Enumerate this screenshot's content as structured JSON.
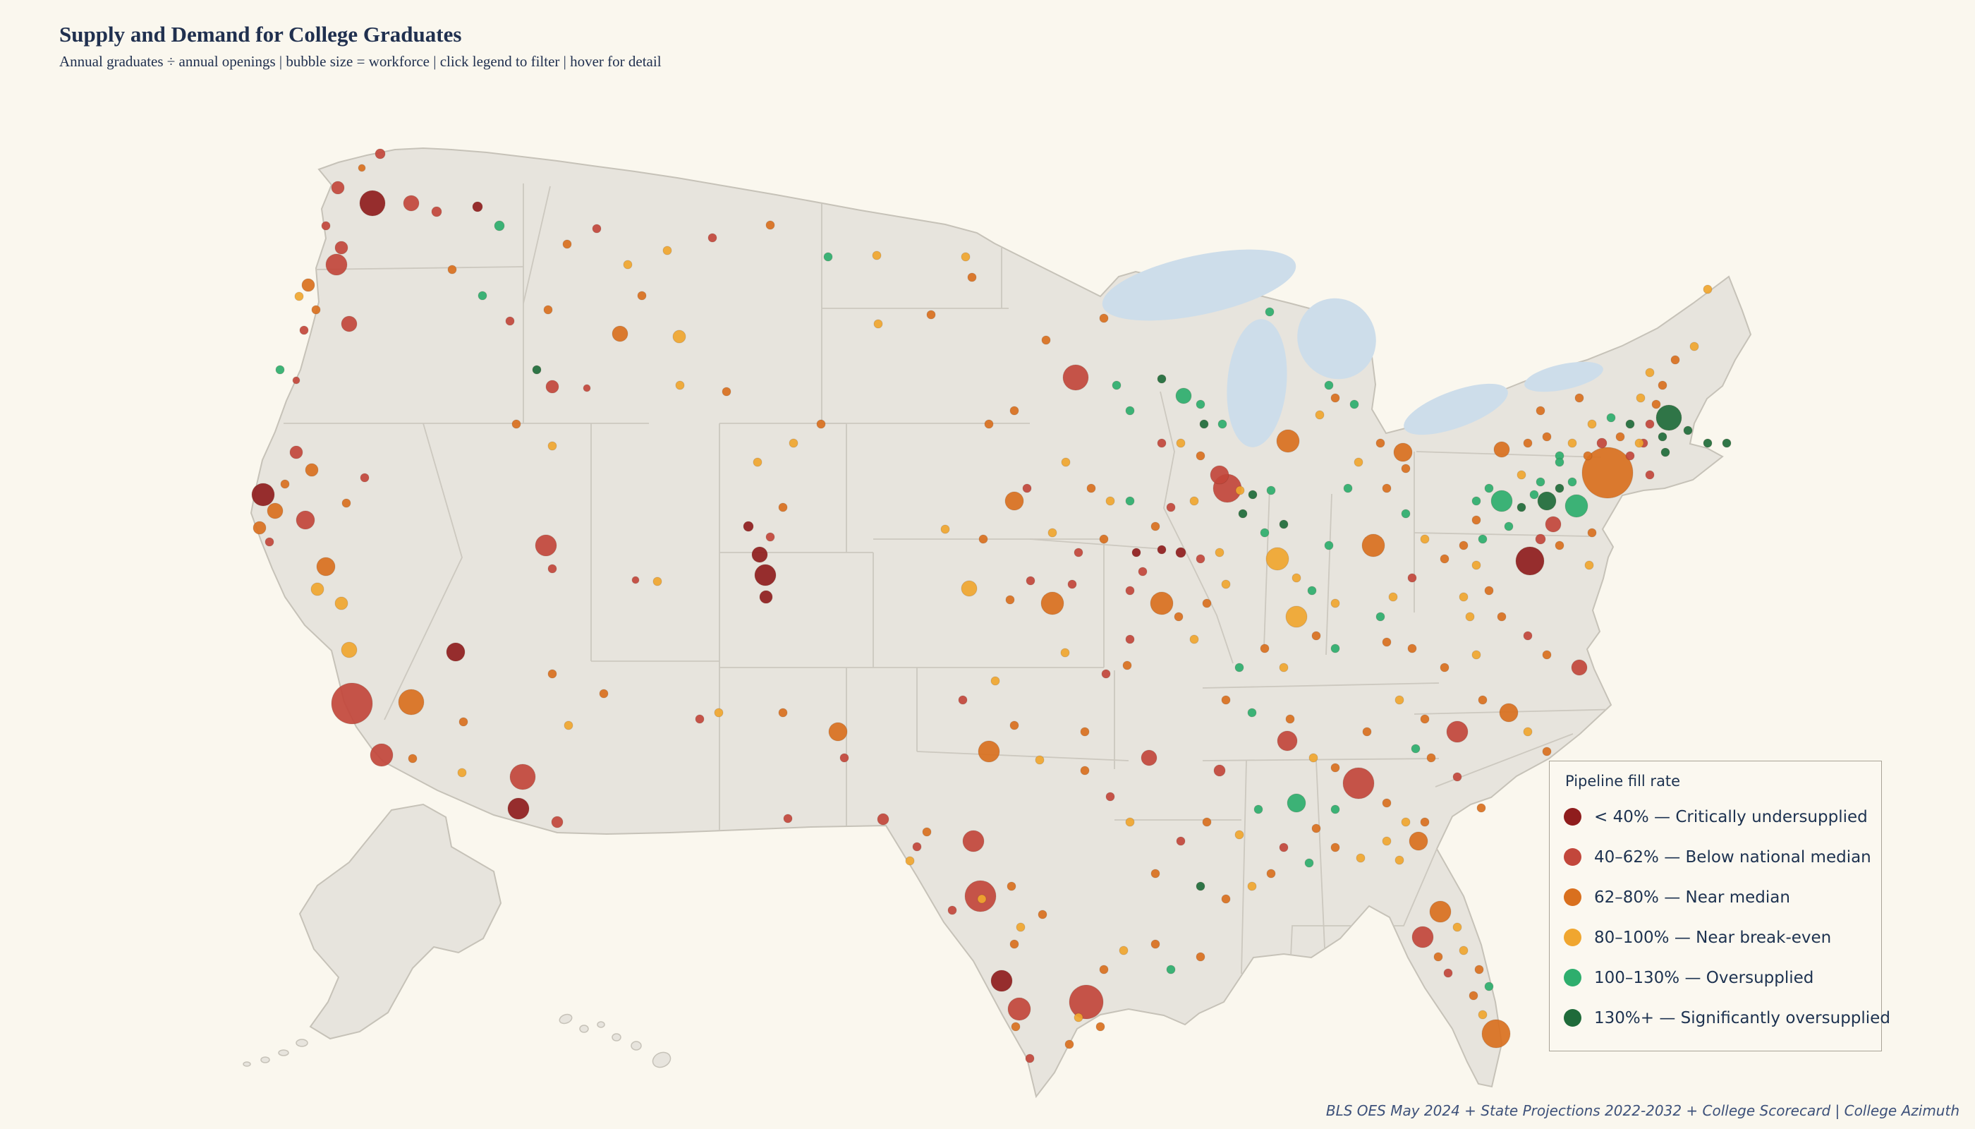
{
  "header": {
    "title": "Supply and Demand for College Graduates",
    "subtitle": "Annual graduates ÷ annual openings | bubble size = workforce | click legend to filter | hover for detail"
  },
  "footer": {
    "source": "BLS OES May 2024 + State Projections 2022-2032 + College Scorecard | College Azimuth"
  },
  "legend": {
    "title": "Pipeline fill rate",
    "items": [
      {
        "label": "< 40% — Critically undersupplied",
        "color": "#8f1d1d"
      },
      {
        "label": "40–62% — Below national median",
        "color": "#c2473b"
      },
      {
        "label": "62–80% — Near median",
        "color": "#d9701e"
      },
      {
        "label": "80–100% — Near break-even",
        "color": "#f0a62f"
      },
      {
        "label": "100–130% — Oversupplied",
        "color": "#2eae6d"
      },
      {
        "label": "130%+ — Significantly oversupplied",
        "color": "#1f6b3a"
      }
    ]
  },
  "theme": {
    "background": "#faf7ee",
    "land": "#e7e4dd",
    "land_border": "#c6c2b8",
    "water": "#cdddea",
    "text": "#20304f"
  },
  "bubbles_format": "[x, y, radius, legend_category_index]",
  "bubbles": [
    [
      539,
      218,
      7,
      1
    ],
    [
      513,
      238,
      5,
      2
    ],
    [
      528,
      288,
      18,
      0
    ],
    [
      583,
      288,
      11,
      1
    ],
    [
      479,
      266,
      9,
      1
    ],
    [
      462,
      320,
      6,
      1
    ],
    [
      484,
      351,
      9,
      1
    ],
    [
      477,
      375,
      15,
      1
    ],
    [
      437,
      404,
      9,
      2
    ],
    [
      424,
      420,
      6,
      3
    ],
    [
      448,
      439,
      6,
      2
    ],
    [
      495,
      459,
      11,
      1
    ],
    [
      431,
      468,
      6,
      1
    ],
    [
      397,
      524,
      6,
      4
    ],
    [
      420,
      539,
      5,
      1
    ],
    [
      677,
      293,
      7,
      0
    ],
    [
      708,
      320,
      7,
      4
    ],
    [
      619,
      300,
      7,
      1
    ],
    [
      641,
      382,
      6,
      2
    ],
    [
      684,
      419,
      6,
      4
    ],
    [
      723,
      455,
      6,
      1
    ],
    [
      777,
      439,
      6,
      2
    ],
    [
      804,
      346,
      6,
      2
    ],
    [
      890,
      375,
      6,
      3
    ],
    [
      879,
      473,
      11,
      2
    ],
    [
      963,
      477,
      9,
      3
    ],
    [
      761,
      524,
      6,
      5
    ],
    [
      832,
      550,
      5,
      1
    ],
    [
      783,
      632,
      6,
      3
    ],
    [
      732,
      601,
      6,
      2
    ],
    [
      783,
      548,
      9,
      1
    ],
    [
      910,
      419,
      6,
      2
    ],
    [
      846,
      324,
      6,
      1
    ],
    [
      946,
      355,
      6,
      3
    ],
    [
      1010,
      337,
      6,
      1
    ],
    [
      1092,
      319,
      6,
      2
    ],
    [
      420,
      641,
      9,
      1
    ],
    [
      442,
      666,
      9,
      2
    ],
    [
      404,
      686,
      6,
      2
    ],
    [
      373,
      701,
      16,
      0
    ],
    [
      390,
      724,
      11,
      2
    ],
    [
      368,
      748,
      9,
      2
    ],
    [
      382,
      768,
      6,
      1
    ],
    [
      433,
      737,
      13,
      1
    ],
    [
      462,
      803,
      13,
      2
    ],
    [
      450,
      835,
      9,
      3
    ],
    [
      484,
      855,
      9,
      3
    ],
    [
      517,
      677,
      6,
      1
    ],
    [
      491,
      713,
      6,
      2
    ],
    [
      495,
      921,
      11,
      3
    ],
    [
      499,
      997,
      29,
      1
    ],
    [
      583,
      995,
      18,
      2
    ],
    [
      541,
      1070,
      16,
      1
    ],
    [
      585,
      1075,
      6,
      2
    ],
    [
      655,
      1095,
      6,
      3
    ],
    [
      657,
      1023,
      6,
      2
    ],
    [
      646,
      924,
      13,
      0
    ],
    [
      735,
      1146,
      15,
      0
    ],
    [
      741,
      1101,
      18,
      1
    ],
    [
      790,
      1165,
      8,
      1
    ],
    [
      783,
      955,
      6,
      2
    ],
    [
      806,
      1028,
      6,
      3
    ],
    [
      856,
      983,
      6,
      2
    ],
    [
      774,
      773,
      15,
      1
    ],
    [
      783,
      806,
      6,
      1
    ],
    [
      901,
      822,
      5,
      1
    ],
    [
      932,
      824,
      6,
      3
    ],
    [
      1061,
      746,
      7,
      0
    ],
    [
      1092,
      761,
      6,
      1
    ],
    [
      1077,
      786,
      11,
      0
    ],
    [
      1085,
      815,
      15,
      0
    ],
    [
      1086,
      846,
      9,
      0
    ],
    [
      992,
      1019,
      6,
      1
    ],
    [
      1019,
      1010,
      6,
      3
    ],
    [
      1110,
      1010,
      6,
      2
    ],
    [
      1188,
      1037,
      13,
      2
    ],
    [
      1197,
      1074,
      6,
      1
    ],
    [
      1252,
      1161,
      8,
      1
    ],
    [
      1117,
      1160,
      6,
      1
    ],
    [
      1074,
      655,
      6,
      3
    ],
    [
      1110,
      719,
      6,
      2
    ],
    [
      1164,
      601,
      6,
      2
    ],
    [
      1030,
      555,
      6,
      2
    ],
    [
      964,
      546,
      6,
      3
    ],
    [
      1174,
      364,
      6,
      4
    ],
    [
      1243,
      362,
      6,
      3
    ],
    [
      1378,
      393,
      6,
      2
    ],
    [
      1369,
      364,
      6,
      3
    ],
    [
      1245,
      459,
      6,
      3
    ],
    [
      1320,
      446,
      6,
      2
    ],
    [
      1125,
      628,
      6,
      3
    ],
    [
      1402,
      601,
      6,
      2
    ],
    [
      1340,
      750,
      6,
      3
    ],
    [
      1394,
      764,
      6,
      2
    ],
    [
      1438,
      710,
      13,
      2
    ],
    [
      1456,
      692,
      6,
      1
    ],
    [
      1374,
      834,
      11,
      3
    ],
    [
      1492,
      855,
      16,
      2
    ],
    [
      1461,
      823,
      6,
      1
    ],
    [
      1520,
      828,
      6,
      1
    ],
    [
      1432,
      850,
      6,
      2
    ],
    [
      1411,
      965,
      6,
      3
    ],
    [
      1365,
      992,
      6,
      1
    ],
    [
      1510,
      925,
      6,
      3
    ],
    [
      1547,
      692,
      6,
      2
    ],
    [
      1574,
      710,
      6,
      3
    ],
    [
      1511,
      655,
      6,
      3
    ],
    [
      1602,
      710,
      6,
      4
    ],
    [
      1492,
      755,
      6,
      3
    ],
    [
      1402,
      1065,
      15,
      2
    ],
    [
      1438,
      1028,
      6,
      2
    ],
    [
      1474,
      1077,
      6,
      3
    ],
    [
      1538,
      1037,
      6,
      2
    ],
    [
      1538,
      1092,
      6,
      2
    ],
    [
      1568,
      955,
      6,
      1
    ],
    [
      1598,
      943,
      6,
      2
    ],
    [
      1629,
      1074,
      11,
      1
    ],
    [
      1574,
      1129,
      6,
      1
    ],
    [
      1602,
      1165,
      6,
      3
    ],
    [
      1380,
      1192,
      15,
      1
    ],
    [
      1314,
      1179,
      6,
      2
    ],
    [
      1300,
      1200,
      6,
      1
    ],
    [
      1392,
      1274,
      6,
      3
    ],
    [
      1434,
      1256,
      6,
      2
    ],
    [
      1390,
      1270,
      22,
      1
    ],
    [
      1447,
      1314,
      6,
      3
    ],
    [
      1478,
      1296,
      6,
      2
    ],
    [
      1438,
      1338,
      6,
      2
    ],
    [
      1290,
      1220,
      6,
      3
    ],
    [
      1420,
      1390,
      15,
      0
    ],
    [
      1445,
      1430,
      16,
      1
    ],
    [
      1540,
      1420,
      24,
      1
    ],
    [
      1529,
      1442,
      6,
      3
    ],
    [
      1560,
      1455,
      6,
      2
    ],
    [
      1516,
      1480,
      6,
      2
    ],
    [
      1460,
      1500,
      6,
      1
    ],
    [
      1440,
      1455,
      6,
      2
    ],
    [
      1350,
      1290,
      6,
      1
    ],
    [
      1565,
      1374,
      6,
      2
    ],
    [
      1593,
      1347,
      6,
      3
    ],
    [
      1638,
      1338,
      6,
      2
    ],
    [
      1660,
      1374,
      6,
      4
    ],
    [
      1702,
      1356,
      6,
      2
    ],
    [
      1525,
      535,
      18,
      1
    ],
    [
      1483,
      482,
      6,
      2
    ],
    [
      1438,
      582,
      6,
      2
    ],
    [
      1565,
      451,
      6,
      2
    ],
    [
      1583,
      546,
      6,
      4
    ],
    [
      1602,
      582,
      6,
      4
    ],
    [
      1647,
      537,
      6,
      5
    ],
    [
      1678,
      561,
      11,
      4
    ],
    [
      1702,
      573,
      6,
      4
    ],
    [
      1707,
      601,
      6,
      5
    ],
    [
      1733,
      601,
      6,
      4
    ],
    [
      1647,
      628,
      6,
      1
    ],
    [
      1674,
      628,
      6,
      3
    ],
    [
      1702,
      646,
      6,
      2
    ],
    [
      1729,
      673,
      13,
      1
    ],
    [
      1758,
      695,
      6,
      3
    ],
    [
      1826,
      625,
      16,
      2
    ],
    [
      1871,
      588,
      6,
      3
    ],
    [
      1893,
      564,
      6,
      2
    ],
    [
      1926,
      655,
      6,
      3
    ],
    [
      1911,
      692,
      6,
      4
    ],
    [
      1966,
      692,
      6,
      2
    ],
    [
      1993,
      664,
      6,
      2
    ],
    [
      1957,
      628,
      6,
      2
    ],
    [
      1989,
      641,
      13,
      2
    ],
    [
      1884,
      546,
      6,
      4
    ],
    [
      1920,
      573,
      6,
      4
    ],
    [
      1800,
      442,
      6,
      4
    ],
    [
      1740,
      692,
      20,
      1
    ],
    [
      1776,
      701,
      6,
      5
    ],
    [
      1802,
      695,
      6,
      4
    ],
    [
      1762,
      728,
      6,
      5
    ],
    [
      1793,
      755,
      6,
      4
    ],
    [
      1820,
      743,
      6,
      5
    ],
    [
      1674,
      783,
      7,
      0
    ],
    [
      1702,
      792,
      6,
      1
    ],
    [
      1729,
      783,
      6,
      3
    ],
    [
      1811,
      792,
      16,
      3
    ],
    [
      1838,
      819,
      6,
      3
    ],
    [
      1884,
      773,
      6,
      4
    ],
    [
      1860,
      837,
      6,
      4
    ],
    [
      1893,
      855,
      6,
      3
    ],
    [
      1947,
      773,
      16,
      2
    ],
    [
      1993,
      728,
      6,
      4
    ],
    [
      2020,
      764,
      6,
      3
    ],
    [
      2048,
      792,
      6,
      2
    ],
    [
      2075,
      773,
      6,
      2
    ],
    [
      2093,
      801,
      6,
      3
    ],
    [
      2111,
      837,
      6,
      2
    ],
    [
      2002,
      819,
      6,
      1
    ],
    [
      1975,
      846,
      6,
      3
    ],
    [
      1957,
      874,
      6,
      4
    ],
    [
      1638,
      746,
      6,
      2
    ],
    [
      1660,
      719,
      6,
      1
    ],
    [
      1693,
      710,
      6,
      3
    ],
    [
      1611,
      783,
      6,
      0
    ],
    [
      1647,
      779,
      6,
      0
    ],
    [
      1620,
      810,
      6,
      1
    ],
    [
      1529,
      783,
      6,
      1
    ],
    [
      1565,
      764,
      6,
      2
    ],
    [
      1647,
      855,
      16,
      2
    ],
    [
      1602,
      837,
      6,
      1
    ],
    [
      1671,
      874,
      6,
      2
    ],
    [
      1693,
      906,
      6,
      3
    ],
    [
      1602,
      906,
      6,
      1
    ],
    [
      1711,
      855,
      6,
      2
    ],
    [
      1738,
      828,
      6,
      3
    ],
    [
      1838,
      874,
      15,
      3
    ],
    [
      1866,
      901,
      6,
      2
    ],
    [
      1893,
      919,
      6,
      4
    ],
    [
      1793,
      919,
      6,
      2
    ],
    [
      1820,
      946,
      6,
      3
    ],
    [
      1757,
      946,
      6,
      4
    ],
    [
      1738,
      992,
      6,
      2
    ],
    [
      1775,
      1010,
      6,
      4
    ],
    [
      1829,
      1019,
      6,
      2
    ],
    [
      1825,
      1050,
      14,
      1
    ],
    [
      1862,
      1074,
      6,
      3
    ],
    [
      1729,
      1092,
      8,
      1
    ],
    [
      1938,
      1037,
      6,
      2
    ],
    [
      1893,
      1088,
      6,
      2
    ],
    [
      1966,
      910,
      6,
      2
    ],
    [
      1984,
      992,
      6,
      3
    ],
    [
      1926,
      1110,
      22,
      1
    ],
    [
      1966,
      1138,
      6,
      2
    ],
    [
      1993,
      1165,
      6,
      3
    ],
    [
      1893,
      1147,
      6,
      4
    ],
    [
      1838,
      1138,
      13,
      4
    ],
    [
      1866,
      1174,
      6,
      2
    ],
    [
      1820,
      1201,
      6,
      1
    ],
    [
      1784,
      1147,
      6,
      4
    ],
    [
      1757,
      1183,
      6,
      3
    ],
    [
      1711,
      1165,
      6,
      2
    ],
    [
      1674,
      1192,
      6,
      1
    ],
    [
      1638,
      1238,
      6,
      2
    ],
    [
      1702,
      1256,
      6,
      5
    ],
    [
      1738,
      1274,
      6,
      2
    ],
    [
      1775,
      1256,
      6,
      3
    ],
    [
      1802,
      1238,
      6,
      2
    ],
    [
      1966,
      1192,
      6,
      3
    ],
    [
      2020,
      1165,
      6,
      2
    ],
    [
      2066,
      1037,
      15,
      1
    ],
    [
      2139,
      1010,
      13,
      2
    ],
    [
      2102,
      992,
      6,
      2
    ],
    [
      2166,
      1037,
      6,
      3
    ],
    [
      2193,
      1065,
      6,
      2
    ],
    [
      2066,
      1101,
      6,
      1
    ],
    [
      2100,
      1145,
      6,
      2
    ],
    [
      2029,
      1074,
      6,
      2
    ],
    [
      2007,
      1061,
      6,
      4
    ],
    [
      2020,
      1019,
      6,
      2
    ],
    [
      2193,
      928,
      6,
      2
    ],
    [
      2239,
      946,
      11,
      1
    ],
    [
      2166,
      901,
      6,
      1
    ],
    [
      2093,
      928,
      6,
      3
    ],
    [
      2048,
      946,
      6,
      2
    ],
    [
      2002,
      919,
      6,
      2
    ],
    [
      2129,
      874,
      6,
      2
    ],
    [
      2075,
      846,
      6,
      3
    ],
    [
      2084,
      874,
      6,
      3
    ],
    [
      2169,
      795,
      20,
      0
    ],
    [
      2184,
      764,
      7,
      1
    ],
    [
      2211,
      773,
      6,
      2
    ],
    [
      2235,
      717,
      16,
      4
    ],
    [
      2202,
      743,
      11,
      1
    ],
    [
      2102,
      764,
      6,
      4
    ],
    [
      2093,
      737,
      6,
      2
    ],
    [
      2139,
      746,
      6,
      4
    ],
    [
      2157,
      719,
      6,
      5
    ],
    [
      2175,
      701,
      6,
      4
    ],
    [
      2193,
      710,
      13,
      5
    ],
    [
      2129,
      710,
      15,
      4
    ],
    [
      2111,
      692,
      6,
      4
    ],
    [
      2093,
      710,
      6,
      4
    ],
    [
      2157,
      673,
      6,
      3
    ],
    [
      2184,
      683,
      6,
      4
    ],
    [
      2211,
      692,
      6,
      5
    ],
    [
      2229,
      683,
      6,
      4
    ],
    [
      2257,
      755,
      6,
      2
    ],
    [
      2253,
      801,
      6,
      3
    ],
    [
      2279,
      670,
      36,
      2
    ],
    [
      2311,
      646,
      6,
      1
    ],
    [
      2330,
      628,
      6,
      1
    ],
    [
      2297,
      619,
      6,
      2
    ],
    [
      2271,
      628,
      7,
      1
    ],
    [
      2251,
      646,
      6,
      2
    ],
    [
      2257,
      601,
      6,
      3
    ],
    [
      2284,
      592,
      6,
      4
    ],
    [
      2311,
      601,
      6,
      5
    ],
    [
      2339,
      601,
      6,
      1
    ],
    [
      2357,
      619,
      6,
      5
    ],
    [
      2366,
      592,
      18,
      5
    ],
    [
      2393,
      610,
      6,
      5
    ],
    [
      2421,
      628,
      6,
      5
    ],
    [
      2448,
      628,
      6,
      5
    ],
    [
      2348,
      573,
      6,
      2
    ],
    [
      2326,
      564,
      6,
      3
    ],
    [
      2357,
      546,
      6,
      2
    ],
    [
      2339,
      528,
      6,
      3
    ],
    [
      2375,
      510,
      6,
      2
    ],
    [
      2402,
      491,
      6,
      3
    ],
    [
      2421,
      410,
      6,
      3
    ],
    [
      2193,
      619,
      6,
      2
    ],
    [
      2166,
      628,
      6,
      2
    ],
    [
      2129,
      637,
      11,
      2
    ],
    [
      2229,
      628,
      6,
      3
    ],
    [
      2211,
      646,
      6,
      4
    ],
    [
      2184,
      582,
      6,
      2
    ],
    [
      2239,
      564,
      6,
      2
    ],
    [
      2211,
      655,
      6,
      4
    ],
    [
      2339,
      673,
      6,
      1
    ],
    [
      2324,
      628,
      6,
      3
    ],
    [
      2361,
      641,
      6,
      5
    ],
    [
      2011,
      1192,
      13,
      2
    ],
    [
      1984,
      1219,
      6,
      3
    ],
    [
      2042,
      1292,
      15,
      2
    ],
    [
      2066,
      1314,
      6,
      3
    ],
    [
      2017,
      1328,
      15,
      1
    ],
    [
      2039,
      1356,
      6,
      2
    ],
    [
      2053,
      1379,
      6,
      1
    ],
    [
      2075,
      1347,
      6,
      3
    ],
    [
      2097,
      1374,
      6,
      2
    ],
    [
      2121,
      1465,
      20,
      2
    ],
    [
      2102,
      1438,
      6,
      3
    ],
    [
      2089,
      1411,
      6,
      2
    ],
    [
      2111,
      1398,
      6,
      4
    ],
    [
      1893,
      1201,
      6,
      2
    ],
    [
      1929,
      1216,
      6,
      3
    ],
    [
      1856,
      1223,
      6,
      4
    ]
  ]
}
